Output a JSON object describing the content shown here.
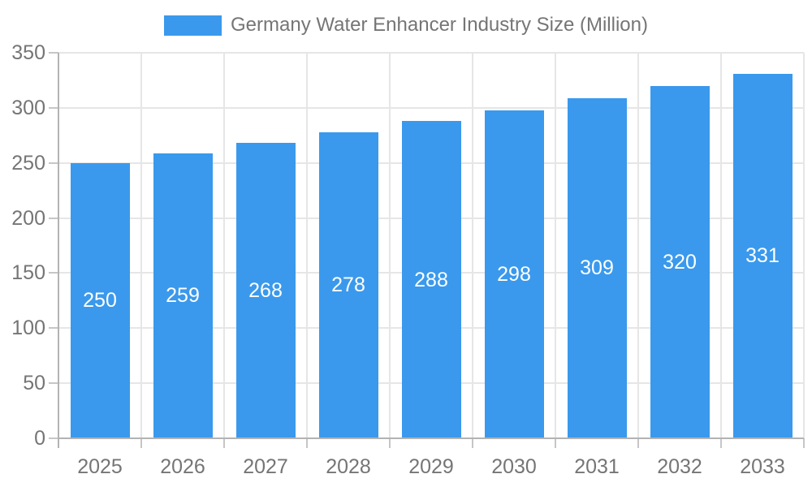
{
  "legend": {
    "label": "Germany Water Enhancer Industry Size (Million)",
    "swatch_color": "#3a99ec"
  },
  "chart_data": {
    "type": "bar",
    "title": "Germany Water Enhancer Industry Size (Million)",
    "categories": [
      "2025",
      "2026",
      "2027",
      "2028",
      "2029",
      "2030",
      "2031",
      "2032",
      "2033"
    ],
    "values": [
      250,
      259,
      268,
      278,
      288,
      298,
      309,
      320,
      331
    ],
    "xlabel": "",
    "ylabel": "",
    "ylim": [
      0,
      350
    ],
    "y_ticks": [
      0,
      50,
      100,
      150,
      200,
      250,
      300,
      350
    ],
    "grid": true,
    "legend_position": "top",
    "bar_labels_inside": true
  },
  "colors": {
    "bar": "#3a99ec",
    "bar_label_text": "#ffffff",
    "axis_text": "#757575",
    "axis_line": "#b3b3b3",
    "tick_line": "#c6c6c6",
    "gridline": "#e6e6e6",
    "background": "#ffffff"
  }
}
